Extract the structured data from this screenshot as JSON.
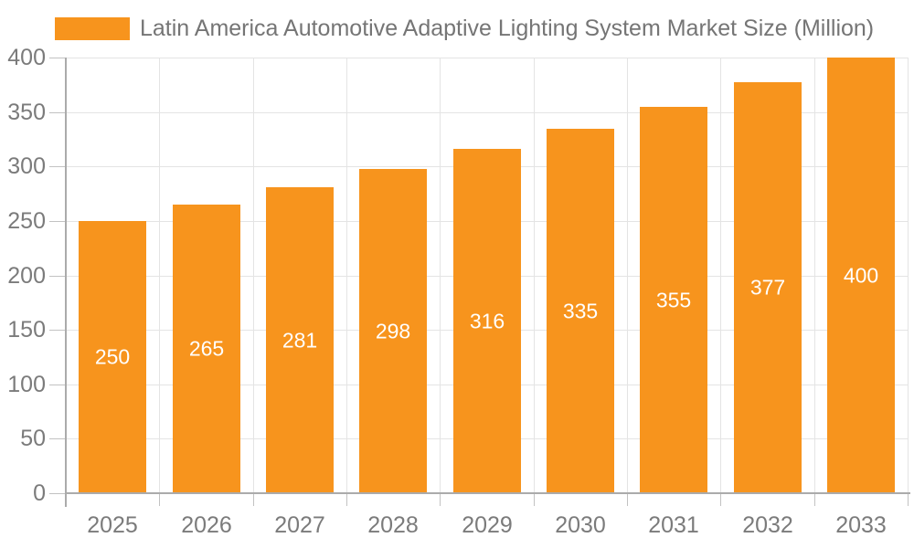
{
  "chart_data": {
    "type": "bar",
    "title": "Latin America Automotive Adaptive Lighting System Market Size (Million)",
    "categories": [
      "2025",
      "2026",
      "2027",
      "2028",
      "2029",
      "2030",
      "2031",
      "2032",
      "2033"
    ],
    "values": [
      250,
      265,
      281,
      298,
      316,
      335,
      355,
      377,
      400
    ],
    "yticks": [
      0,
      50,
      100,
      150,
      200,
      250,
      300,
      350,
      400
    ],
    "ylim": [
      0,
      400
    ],
    "ytick_step": 50,
    "xlabel": "",
    "ylabel": "",
    "grid": true,
    "legend_position": "top-left",
    "bar_label_position": "inside-middle",
    "colors": {
      "bar": "#F7941D",
      "bar_label": "#FFFFFF",
      "axis_text": "#7B7B7B",
      "legend_text": "#757575",
      "gridline": "#E4E4E4",
      "axis_line": "#ABABAB",
      "tick": "#C2C2C2",
      "background": "#FFFFFF"
    }
  }
}
